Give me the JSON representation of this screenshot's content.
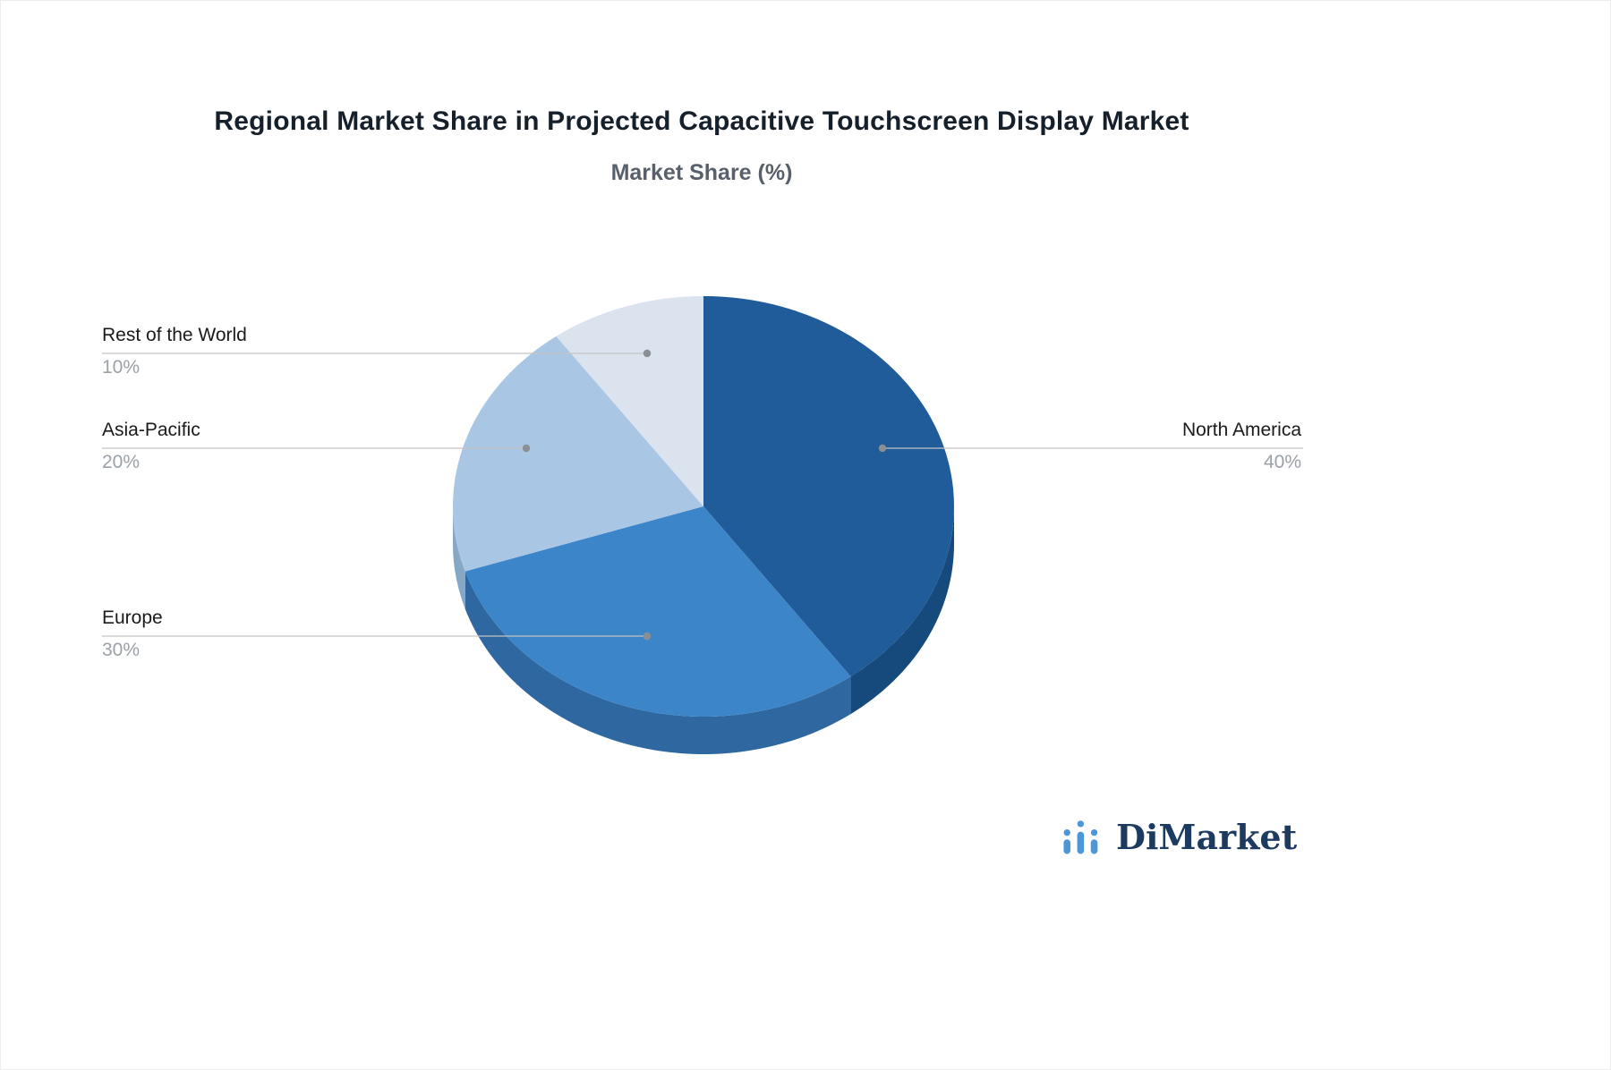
{
  "header": {
    "title": "Regional Market Share in Projected Capacitive Touchscreen Display Market",
    "subtitle": "Market Share (%)"
  },
  "chart_data": {
    "type": "pie",
    "title": "Regional Market Share in Projected Capacitive Touchscreen Display Market",
    "subtitle": "Market Share (%)",
    "unit": "%",
    "categories": [
      "North America",
      "Europe",
      "Asia-Pacific",
      "Rest of the World"
    ],
    "values": [
      40,
      30,
      20,
      10
    ],
    "colors": [
      "#1F5C99",
      "#3D85C9",
      "#A9C7E4",
      "#DBE3EF"
    ],
    "side_colors": [
      "#164A7C",
      "#2F68A0",
      "#87A7C6",
      "#BCC6D6"
    ],
    "start_angle_deg": 0,
    "direction": "clockwise",
    "style": "3d",
    "legend_position": "none",
    "labels": [
      {
        "name": "North America",
        "value_text": "40%"
      },
      {
        "name": "Europe",
        "value_text": "30%"
      },
      {
        "name": "Asia-Pacific",
        "value_text": "20%"
      },
      {
        "name": "Rest of the World",
        "value_text": "10%"
      }
    ]
  },
  "branding": {
    "logo_text": "DiMarket",
    "logo_text_color": "#1d3b60",
    "logo_icon_color": "#4D96D9"
  }
}
